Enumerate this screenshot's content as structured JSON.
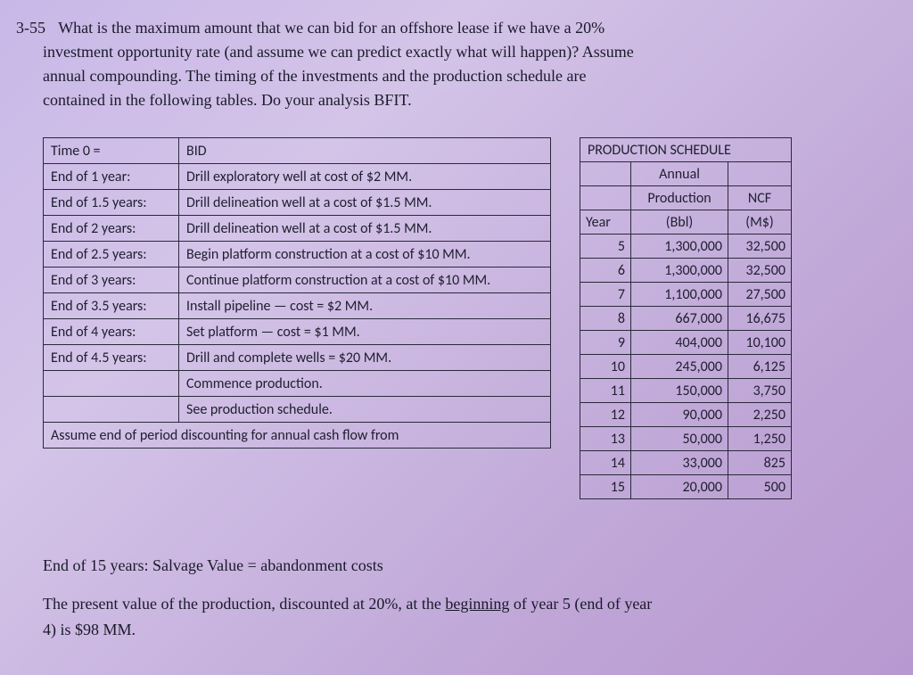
{
  "problem": {
    "number": "3-55",
    "text_line1": "What is the maximum amount that we can bid for an offshore lease if we have a 20%",
    "text_line2": "investment opportunity rate (and assume we can predict exactly what will happen)?  Assume",
    "text_line3": "annual compounding.  The timing of the investments and the production schedule are",
    "text_line4": "contained in the following tables.  Do your analysis BFIT."
  },
  "investment_table": {
    "rows": [
      {
        "time": "Time 0 =",
        "desc": "BID"
      },
      {
        "time": "End of 1 year:",
        "desc": "Drill exploratory well at cost of $2 MM."
      },
      {
        "time": "End of 1.5 years:",
        "desc": "Drill delineation well at a cost of $1.5 MM."
      },
      {
        "time": "End of 2 years:",
        "desc": "Drill delineation well at a cost of $1.5 MM."
      },
      {
        "time": "End of 2.5 years:",
        "desc": "Begin platform construction at a cost of $10 MM."
      },
      {
        "time": "End of 3 years:",
        "desc": "Continue platform construction at a cost of $10 MM."
      },
      {
        "time": "End of 3.5 years:",
        "desc": "Install pipeline — cost = $2 MM."
      },
      {
        "time": "End of 4 years:",
        "desc": "Set platform — cost = $1 MM."
      },
      {
        "time": "End of 4.5 years:",
        "desc": "Drill and complete wells = $20 MM."
      },
      {
        "time": "",
        "desc": "Commence production."
      },
      {
        "time": "",
        "desc": "See production schedule."
      }
    ],
    "footer": "Assume end of period discounting for annual cash flow from"
  },
  "prod_table": {
    "title": "PRODUCTION SCHEDULE",
    "col_annual": "Annual",
    "col_production": "Production",
    "col_ncf": "NCF",
    "col_year": "Year",
    "col_bbl": "(Bbl)",
    "col_ms": "(M$)",
    "rows": [
      {
        "year": "5",
        "bbl": "1,300,000",
        "ncf": "32,500"
      },
      {
        "year": "6",
        "bbl": "1,300,000",
        "ncf": "32,500"
      },
      {
        "year": "7",
        "bbl": "1,100,000",
        "ncf": "27,500"
      },
      {
        "year": "8",
        "bbl": "667,000",
        "ncf": "16,675"
      },
      {
        "year": "9",
        "bbl": "404,000",
        "ncf": "10,100"
      },
      {
        "year": "10",
        "bbl": "245,000",
        "ncf": "6,125"
      },
      {
        "year": "11",
        "bbl": "150,000",
        "ncf": "3,750"
      },
      {
        "year": "12",
        "bbl": "90,000",
        "ncf": "2,250"
      },
      {
        "year": "13",
        "bbl": "50,000",
        "ncf": "1,250"
      },
      {
        "year": "14",
        "bbl": "33,000",
        "ncf": "825"
      },
      {
        "year": "15",
        "bbl": "20,000",
        "ncf": "500"
      }
    ]
  },
  "bottom": {
    "line1": "End of 15 years: Salvage Value = abandonment costs",
    "line2a": "The present value of the production, discounted at 20%, at the ",
    "line2u": "beginning",
    "line2b": " of year 5 (end of year",
    "line3": "4) is $98 MM."
  }
}
